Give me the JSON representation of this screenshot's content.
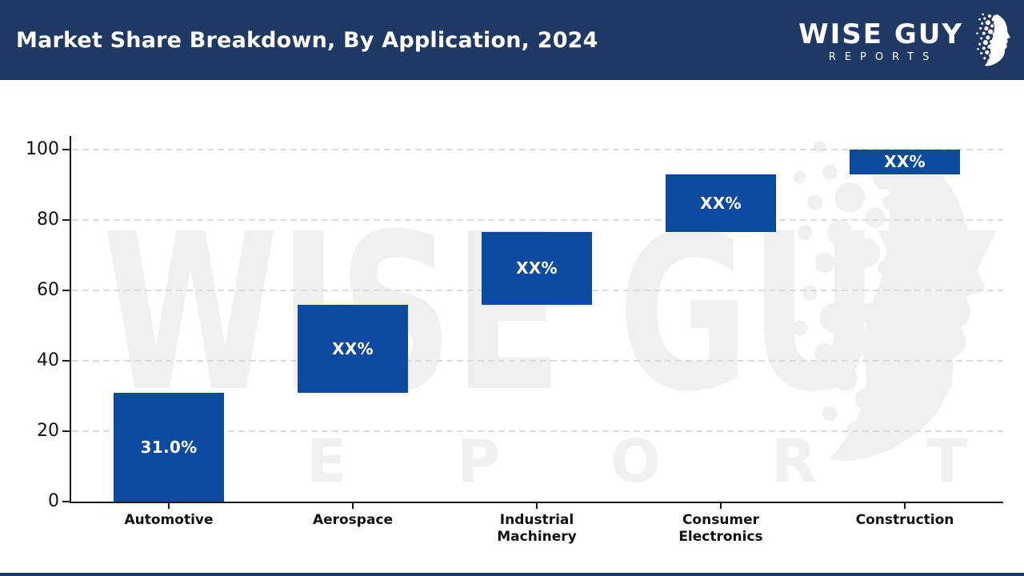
{
  "header": {
    "title": "Market Share Breakdown, By Application, 2024",
    "logo": {
      "line1": "WISE GUY",
      "line2": "REPORTS"
    }
  },
  "watermark": {
    "line1": "WISE GUY",
    "line2": "R E P O R T S"
  },
  "colors": {
    "header_bg": "#1F3864",
    "bar": "#0C4AA0",
    "grid": "#DCDCDC",
    "axis": "#1A1A1A",
    "bar_label": "#FFFFFF",
    "watermark": "#F0F0F0"
  },
  "chart_data": {
    "type": "bar",
    "subtype": "waterfall-cumulative",
    "title": "Market Share Breakdown, By Application, 2024",
    "categories": [
      "Automotive",
      "Aerospace",
      "Industrial\nMachinery",
      "Consumer\nElectronics",
      "Construction"
    ],
    "segments": [
      {
        "category": "Automotive",
        "start": 0,
        "end": 31,
        "label": "31.0%"
      },
      {
        "category": "Aerospace",
        "start": 31,
        "end": 56,
        "label": "XX%"
      },
      {
        "category": "Industrial Machinery",
        "start": 56,
        "end": 76.5,
        "label": "XX%"
      },
      {
        "category": "Consumer Electronics",
        "start": 76.5,
        "end": 93,
        "label": "XX%"
      },
      {
        "category": "Construction",
        "start": 93,
        "end": 100,
        "label": "XX%"
      }
    ],
    "y_ticks": [
      0,
      20,
      40,
      60,
      80,
      100
    ],
    "ylim": [
      0,
      104
    ],
    "xlabel": "",
    "ylabel": "",
    "grid": "horizontal-dashed",
    "legend": null
  }
}
